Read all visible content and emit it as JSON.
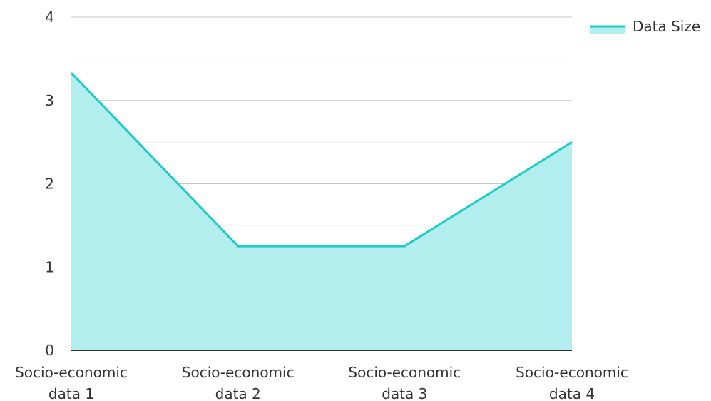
{
  "chart_data": {
    "type": "area",
    "categories": [
      [
        "Socio-economic",
        "data 1"
      ],
      [
        "Socio-economic",
        "data 2"
      ],
      [
        "Socio-economic",
        "data 3"
      ],
      [
        "Socio-economic",
        "data 4"
      ]
    ],
    "series": [
      {
        "name": "Data Size",
        "values": [
          3.33,
          1.25,
          1.25,
          2.5
        ],
        "line_color": "#1ecbc6",
        "fill_color": "#b2eeed"
      }
    ],
    "ylim": [
      0,
      4
    ],
    "yticks": [
      0,
      1,
      2,
      3,
      4
    ],
    "minor_grid_step": 0.5,
    "grid": true,
    "legend_position": "top-right",
    "title": "",
    "xlabel": "",
    "ylabel": ""
  }
}
